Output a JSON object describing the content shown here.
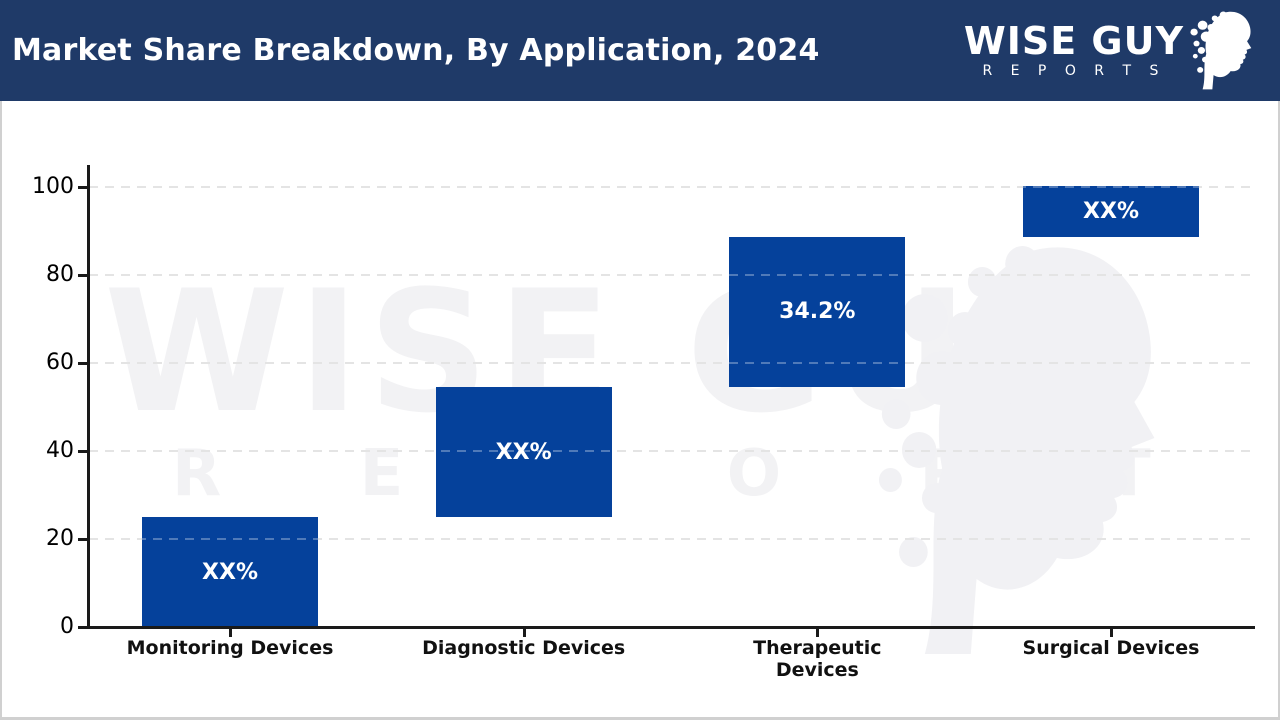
{
  "header": {
    "title": "Market Share Breakdown, By Application, 2024",
    "logo": {
      "line1": "WISE GUY",
      "line2": "R E P O R T S",
      "face_icon": "wise-guy-head-icon"
    }
  },
  "watermark": {
    "line1": "WISE GUY",
    "line2": "R E P O R T S",
    "face_icon": "wise-guy-head-icon"
  },
  "colors": {
    "header_bg": "#1f3a68",
    "bar": "#05419b",
    "bar_label": "#ffffff",
    "axis": "#1a1a1a",
    "grid": "#d9d9d9",
    "watermark": "#f2f2f4",
    "frame": "#d0d0d0"
  },
  "chart_data": {
    "type": "bar",
    "variant": "waterfall-floating-bars",
    "title": "Market Share Breakdown, By Application, 2024",
    "categories": [
      "Monitoring Devices",
      "Diagnostic Devices",
      "Therapeutic\nDevices",
      "Surgical Devices"
    ],
    "segments": [
      {
        "category": "Monitoring Devices",
        "start": 0,
        "end": 25.0,
        "label": "XX%"
      },
      {
        "category": "Diagnostic Devices",
        "start": 25.0,
        "end": 54.5,
        "label": "XX%"
      },
      {
        "category": "Therapeutic Devices",
        "start": 54.5,
        "end": 88.7,
        "label": "34.2%"
      },
      {
        "category": "Surgical Devices",
        "start": 88.7,
        "end": 100.2,
        "label": "XX%"
      }
    ],
    "xlabel": "",
    "ylabel": "",
    "ylim": [
      0,
      100
    ],
    "yticks": [
      0,
      20,
      40,
      60,
      80,
      100
    ],
    "grid": "dashed-horizontal",
    "legend": "none"
  }
}
